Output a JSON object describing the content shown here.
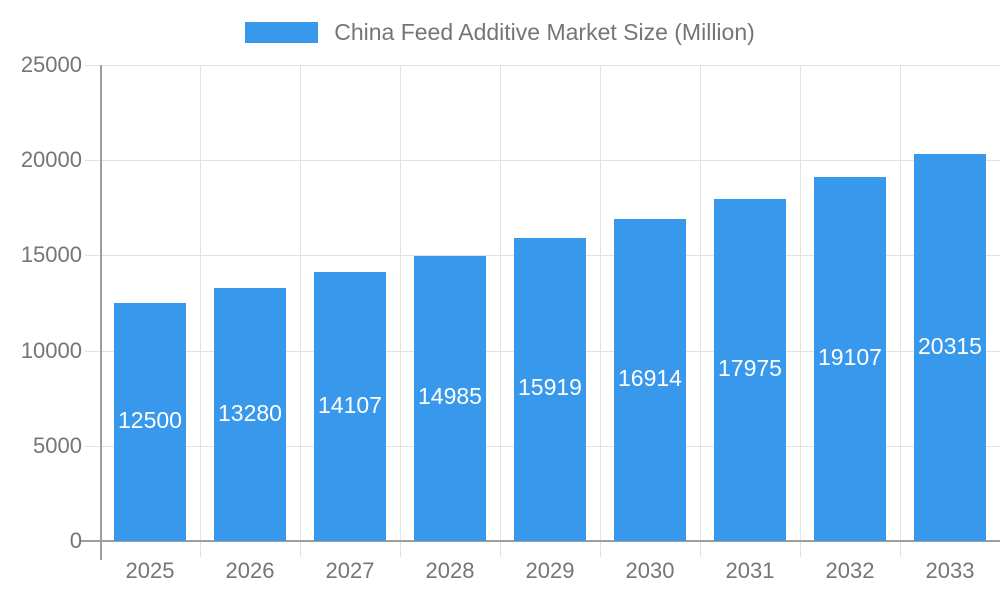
{
  "legend": {
    "label": "China Feed Additive Market Size (Million)"
  },
  "chart_data": {
    "type": "bar",
    "title": "China Feed Additive Market Size (Million)",
    "categories": [
      "2025",
      "2026",
      "2027",
      "2028",
      "2029",
      "2030",
      "2031",
      "2032",
      "2033"
    ],
    "values": [
      12500,
      13280,
      14107,
      14985,
      15919,
      16914,
      17975,
      19107,
      20315
    ],
    "xlabel": "",
    "ylabel": "",
    "ylim": [
      0,
      25000
    ],
    "yticks": [
      0,
      5000,
      10000,
      15000,
      20000,
      25000
    ],
    "grid": true,
    "legend_position": "top",
    "value_labels": "inside-center",
    "colors": {
      "bar": "#3898EC",
      "grid": "#E2E2E2",
      "axis": "#9E9E9E",
      "tick_text": "#757575",
      "value_text": "#FFFFFF",
      "background": "#FFFFFF"
    }
  }
}
